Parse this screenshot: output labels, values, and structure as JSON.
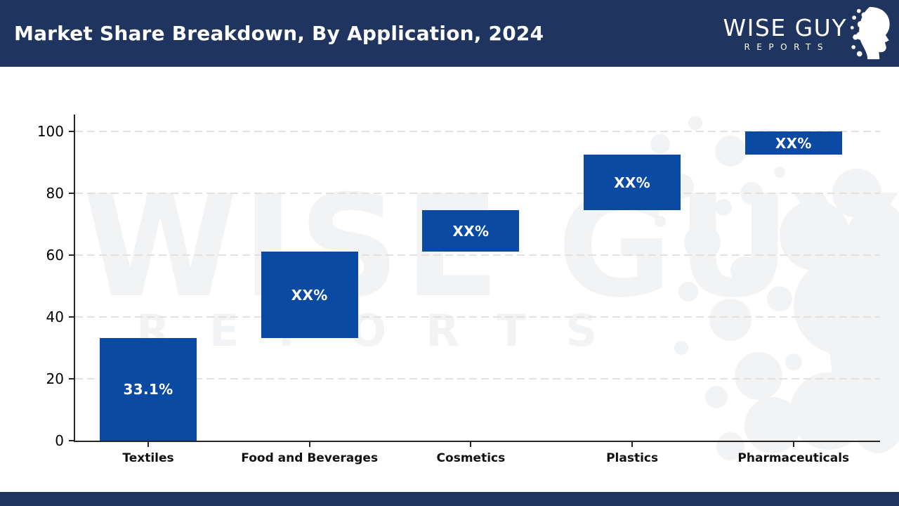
{
  "header": {
    "title": "Market Share Breakdown, By Application, 2024",
    "bg_color": "#1F3560",
    "logo": {
      "wordmark": "WISE GUY",
      "subtitle": "REPORTS"
    }
  },
  "watermark": {
    "line1": "WISE GUY",
    "line2": "REPORTS"
  },
  "chart_data": {
    "type": "bar",
    "subtype": "waterfall",
    "title": "Market Share Breakdown, By Application, 2024",
    "categories": [
      "Textiles",
      "Food and Beverages",
      "Cosmetics",
      "Plastics",
      "Pharmaceuticals"
    ],
    "segments": [
      {
        "category": "Textiles",
        "start": 0,
        "end": 33.1,
        "label": "33.1%"
      },
      {
        "category": "Food and Beverages",
        "start": 33.1,
        "end": 61.1,
        "label": "XX%"
      },
      {
        "category": "Cosmetics",
        "start": 61.1,
        "end": 74.5,
        "label": "XX%"
      },
      {
        "category": "Plastics",
        "start": 74.5,
        "end": 92.5,
        "label": "XX%"
      },
      {
        "category": "Pharmaceuticals",
        "start": 92.5,
        "end": 100,
        "label": "XX%"
      }
    ],
    "yticks": [
      0,
      20,
      40,
      60,
      80,
      100
    ],
    "ylim": [
      0,
      100
    ],
    "xlabel": "",
    "ylabel": "",
    "grid": "horizontal-dashed",
    "legend": "none",
    "bar_color": "#0A4AA3",
    "bar_label_color": "#FFFFFF",
    "axis_color": "#262626",
    "gridline_color": "#E2E2E2"
  }
}
